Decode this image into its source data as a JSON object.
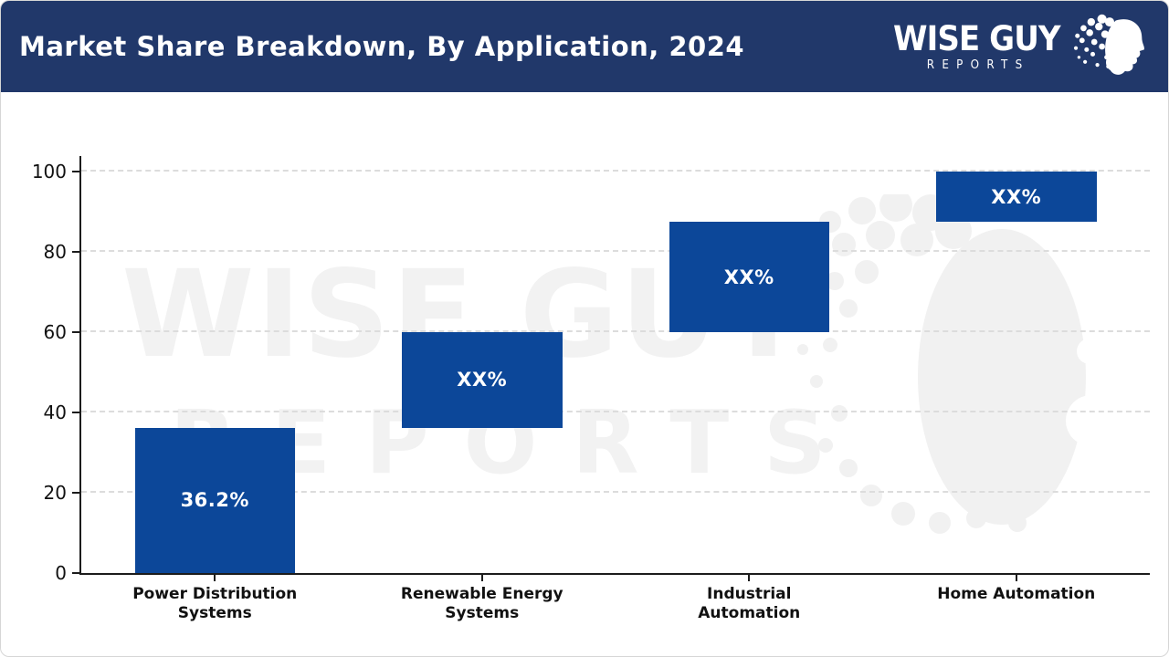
{
  "header": {
    "title": "Market Share Breakdown, By Application, 2024",
    "logo": {
      "line1": "WISE GUY",
      "line2": "REPORTS"
    }
  },
  "watermark": {
    "line1": "WISE GUY",
    "line2": "REPORTS"
  },
  "colors": {
    "header_bg": "#21386a",
    "bar_fill": "#0c4799",
    "bar_label": "#ffffff",
    "axis": "#1c1c1c",
    "gridline": "#dcdcdc",
    "watermark": "#f2f2f2"
  },
  "chart_data": {
    "type": "bar",
    "subtype": "waterfall",
    "title": "Market Share Breakdown, By Application, 2024",
    "categories": [
      "Power Distribution Systems",
      "Renewable Energy Systems",
      "Industrial Automation",
      "Home Automation"
    ],
    "series": [
      {
        "name": "Market Share (%)",
        "segments": [
          {
            "start": 0,
            "end": 36.2,
            "label": "36.2%"
          },
          {
            "start": 36.2,
            "end": 60,
            "label": "XX%"
          },
          {
            "start": 60,
            "end": 87.5,
            "label": "XX%"
          },
          {
            "start": 87.5,
            "end": 100,
            "label": "XX%"
          }
        ]
      }
    ],
    "xlabel": "",
    "ylabel": "",
    "ylim": [
      0,
      100
    ],
    "yticks": [
      0,
      20,
      40,
      60,
      80,
      100
    ],
    "grid": "dashed-horizontal",
    "legend": "none"
  }
}
